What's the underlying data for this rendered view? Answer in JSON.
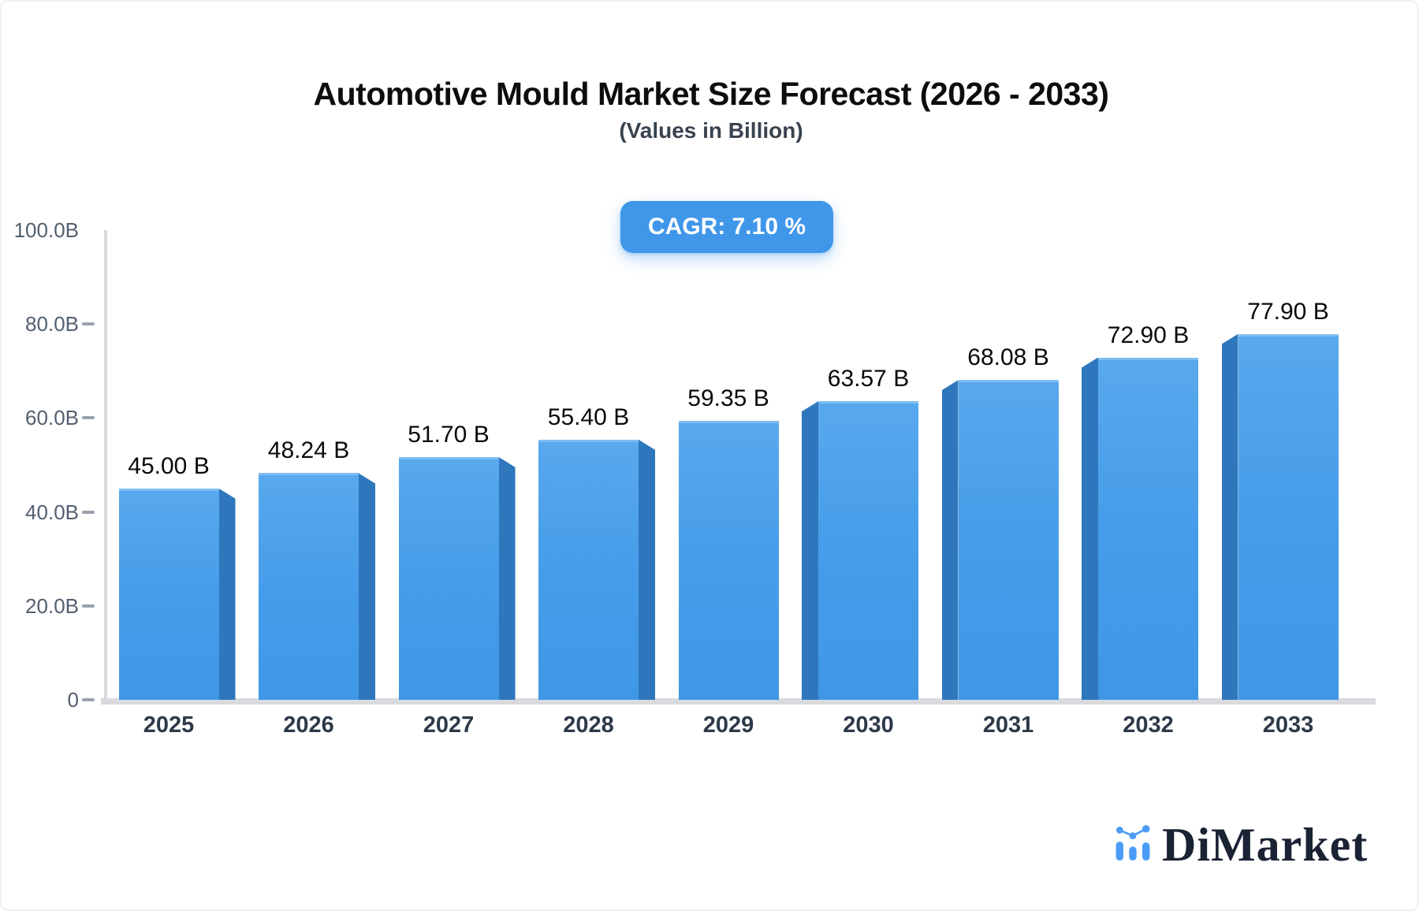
{
  "header": {
    "title": "Automotive Mould Market Size Forecast (2026 - 2033)",
    "subtitle": "(Values in Billion)",
    "cagr_label": "CAGR: 7.10 %"
  },
  "chart_data": {
    "type": "bar",
    "title": "Automotive Mould Market Size Forecast (2026 - 2033)",
    "subtitle": "(Values in Billion)",
    "categories": [
      "2025",
      "2026",
      "2027",
      "2028",
      "2029",
      "2030",
      "2031",
      "2032",
      "2033"
    ],
    "values": [
      45.0,
      48.24,
      51.7,
      55.4,
      59.35,
      63.57,
      68.08,
      72.9,
      77.9
    ],
    "value_labels": [
      "45.00 B",
      "48.24 B",
      "51.70 B",
      "55.40 B",
      "59.35 B",
      "63.57 B",
      "68.08 B",
      "72.90 B",
      "77.90 B"
    ],
    "unit": "Billion",
    "xlabel": "",
    "ylabel": "",
    "ylim": [
      0,
      100
    ],
    "y_ticks": [
      {
        "label": "100.0B",
        "value": 100,
        "dash": false
      },
      {
        "label": "80.0B",
        "value": 80,
        "dash": true
      },
      {
        "label": "60.0B",
        "value": 60,
        "dash": true
      },
      {
        "label": "40.0B",
        "value": 40,
        "dash": true
      },
      {
        "label": "20.0B",
        "value": 20,
        "dash": true
      },
      {
        "label": "0",
        "value": 0,
        "dash": true
      }
    ],
    "grid": false,
    "legend_position": "none",
    "bar_style": "3d-perspective-center"
  },
  "colors": {
    "bar_face": "#459ce9",
    "bar_face_light": "#58a8ed",
    "bar_face_bottom": "#3f97e6",
    "bar_top_edge": "#7fbdf2",
    "bar_side_dark": "#2e77bd",
    "axis_gray": "#d8dade",
    "tick_dash_gray": "#99a1ad",
    "badge_blue": "#4097ea",
    "brand_blue": "#4b9cf6",
    "brand_navy": "#1a2234"
  },
  "footer": {
    "brand": "DiMarket"
  }
}
